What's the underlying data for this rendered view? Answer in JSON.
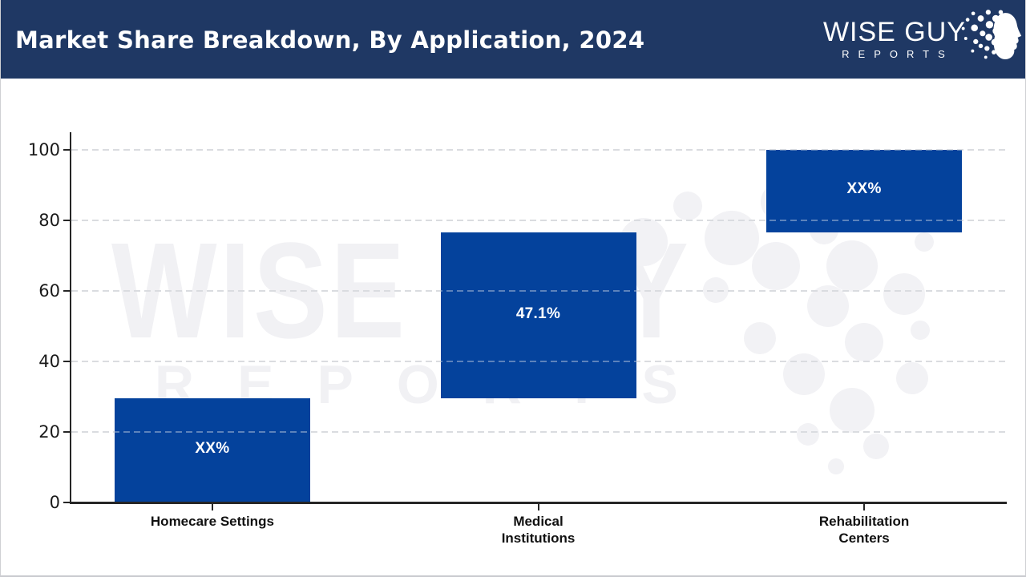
{
  "header": {
    "title": "Market Share Breakdown, By Application, 2024",
    "logo": {
      "line1": "WISE GUY",
      "line2": "REPORTS"
    }
  },
  "watermark": {
    "line1": "WISE GUY",
    "line2": "REPORTS"
  },
  "icons": {
    "logo_face": "dotted-head-profile",
    "watermark_face": "dotted-head-profile-ghost"
  },
  "colors": {
    "header_bg": "#1F3864",
    "bar": "#04429C",
    "grid": "#DCDCDC",
    "axis": "#262626",
    "bar_label": "#FFFFFF",
    "watermark": "#F1F1F4",
    "title_text": "#FFFFFF"
  },
  "chart_data": {
    "type": "bar",
    "variant": "stacked-waterfall",
    "title": "Market Share Breakdown, By Application, 2024",
    "categories": [
      "Homecare Settings",
      "Medical Institutions",
      "Rehabilitation Centers"
    ],
    "category_label_lines": [
      [
        "Homecare Settings"
      ],
      [
        "Medical",
        "Institutions"
      ],
      [
        "Rehabilitation",
        "Centers"
      ]
    ],
    "bars": [
      {
        "category": "Homecare Settings",
        "start": 0,
        "end": 29.5,
        "segment_value": 29.5,
        "value_label": "XX%"
      },
      {
        "category": "Medical Institutions",
        "start": 29.5,
        "end": 76.6,
        "segment_value": 47.1,
        "value_label": "47.1%"
      },
      {
        "category": "Rehabilitation Centers",
        "start": 76.6,
        "end": 100,
        "segment_value": 23.4,
        "value_label": "XX%"
      }
    ],
    "xlabel": "",
    "ylabel": "",
    "ylim": [
      0,
      100
    ],
    "yticks": [
      0,
      20,
      40,
      60,
      80,
      100
    ],
    "grid": "horizontal-dashed",
    "legend": "none"
  }
}
